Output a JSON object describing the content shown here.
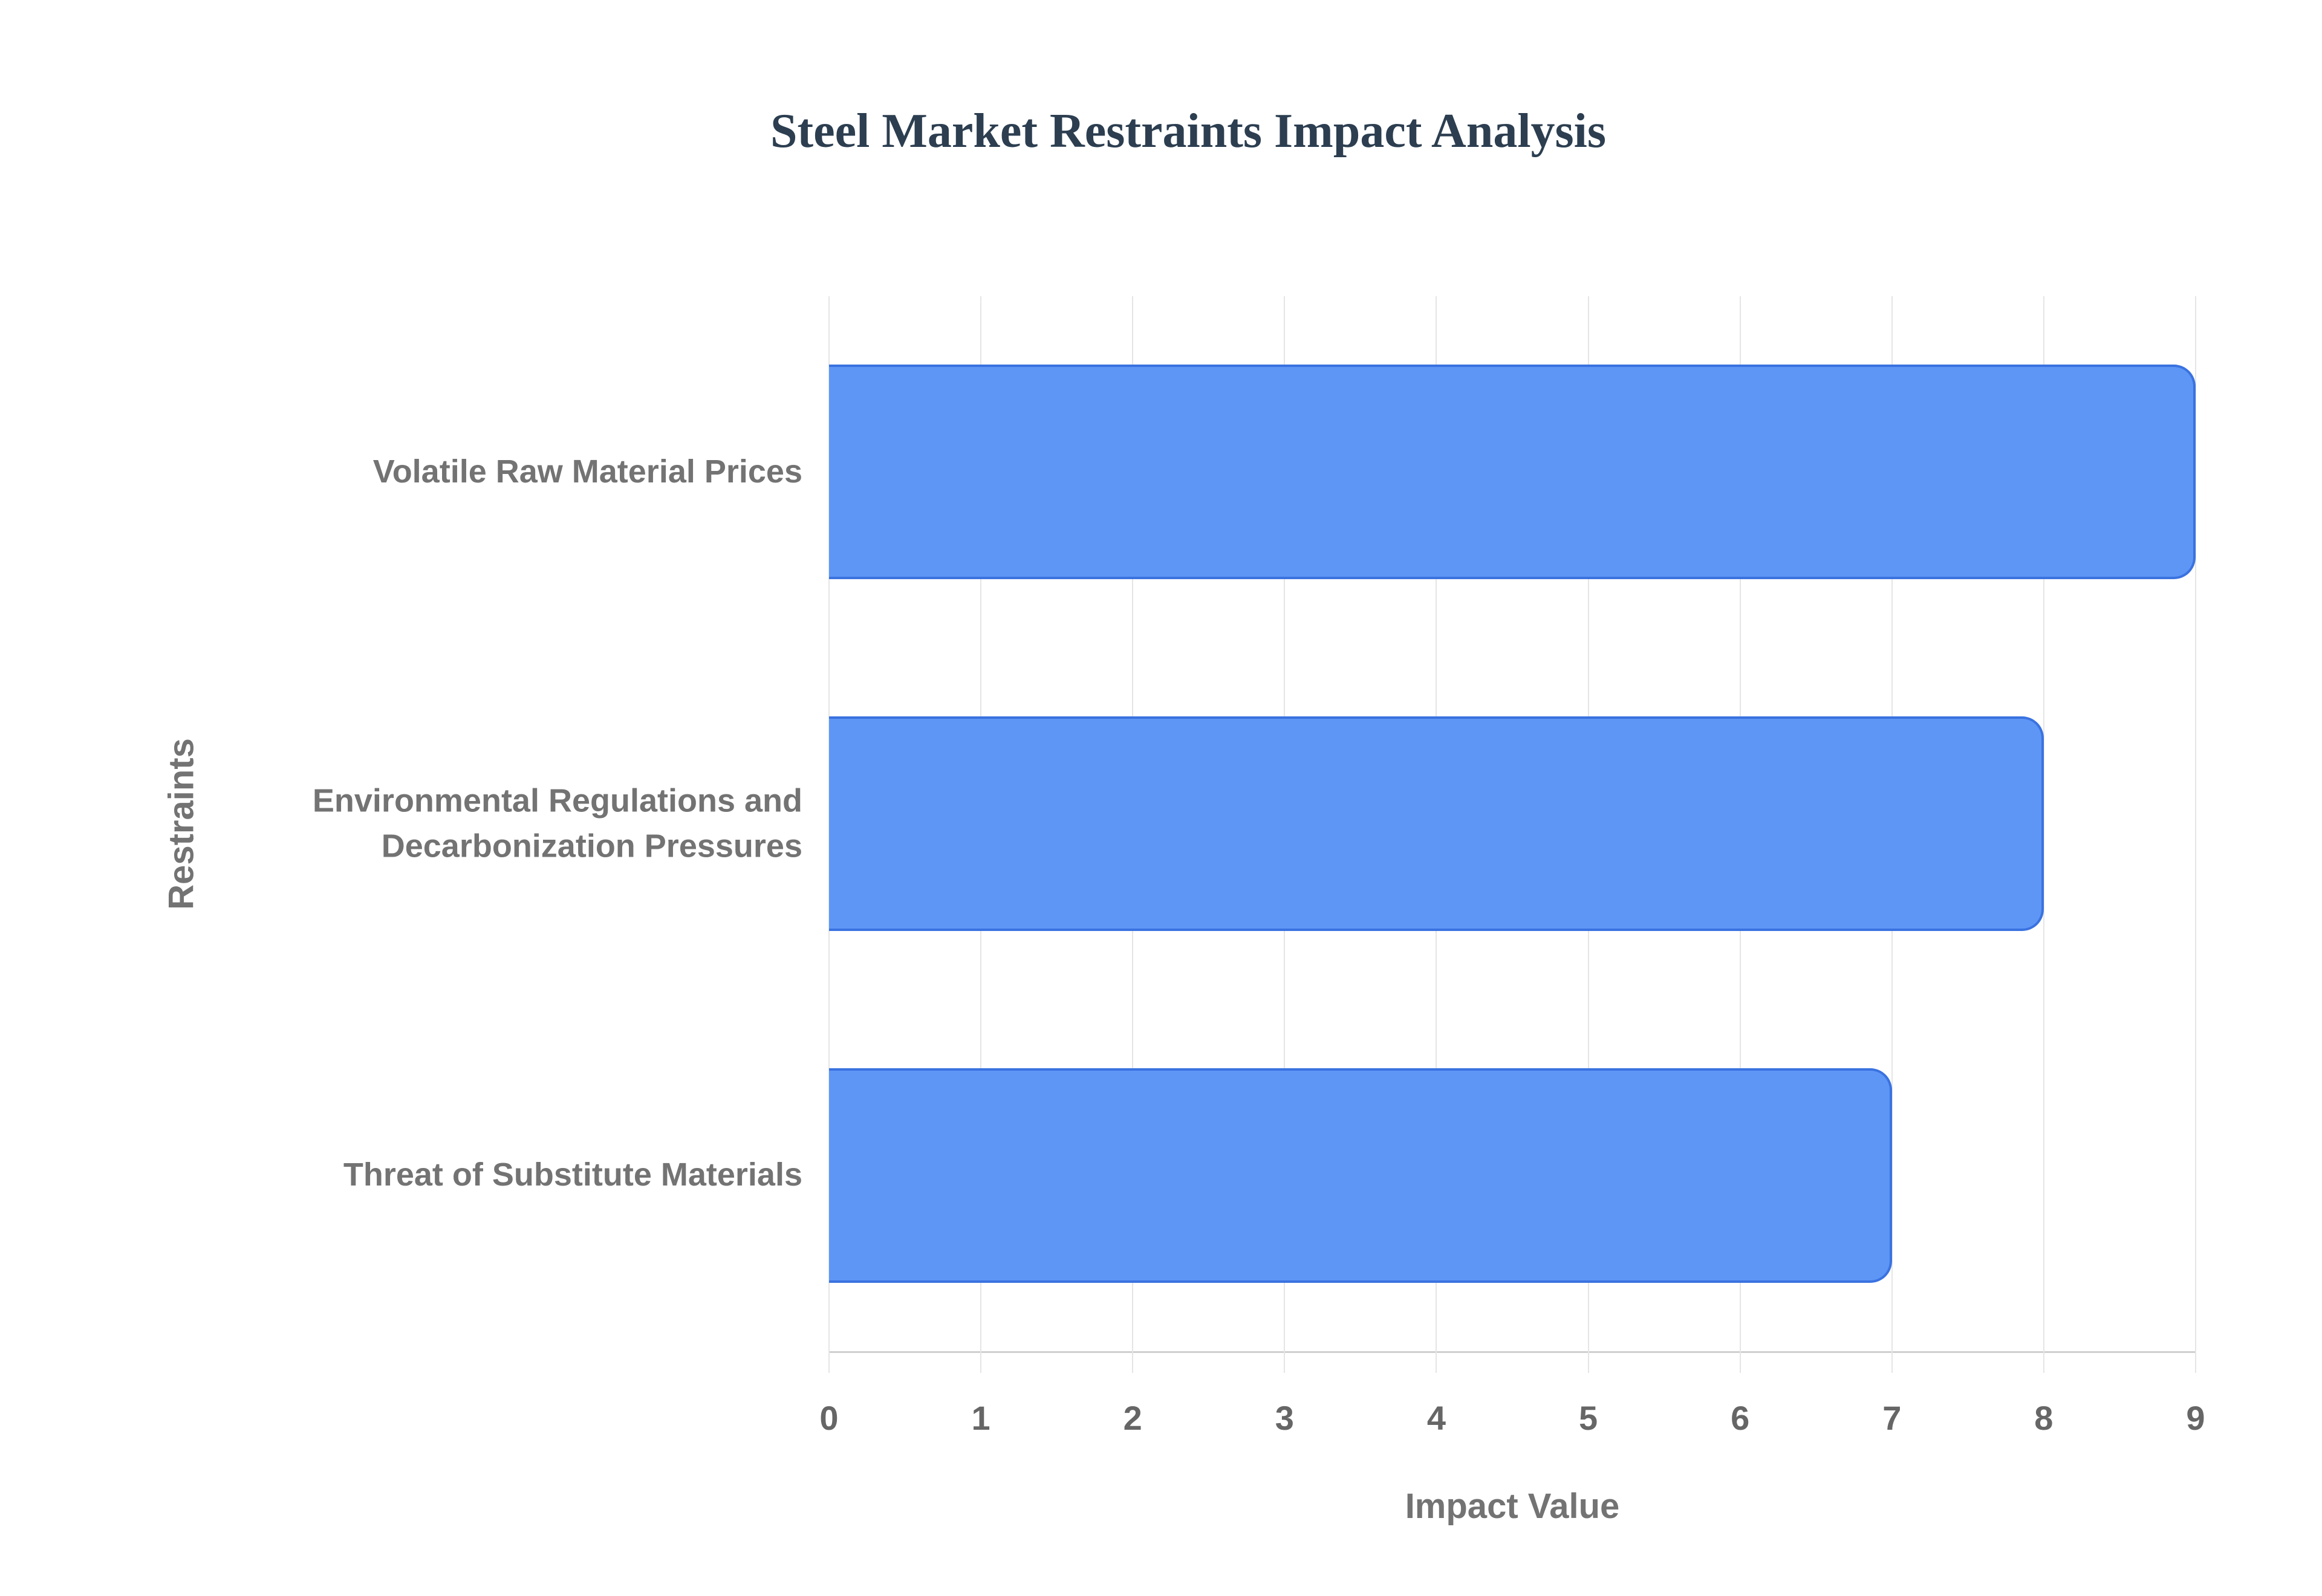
{
  "page": {
    "background": "#ffffff"
  },
  "chart_data": {
    "type": "bar",
    "orientation": "horizontal",
    "title": "Steel Market Restraints Impact Analysis",
    "title_color": "#2c3e50",
    "categories": [
      "Volatile Raw Material Prices",
      "Environmental Regulations and Decarbonization Pressures",
      "Threat of Substitute Materials"
    ],
    "values": [
      9,
      8,
      7
    ],
    "xlabel": "Impact Value",
    "ylabel": "Restraints",
    "xlim": [
      0,
      9
    ],
    "xticks": [
      0,
      1,
      2,
      3,
      4,
      5,
      6,
      7,
      8,
      9
    ],
    "grid": "vertical-only",
    "legend": "none",
    "bar_color": "#5d96f5",
    "bar_border_color": "#3a72e0",
    "gridline_color": "#e5e5e5",
    "axis_line_color": "#d0d0d0",
    "label_color": "#737373",
    "tick_color": "#666666"
  }
}
